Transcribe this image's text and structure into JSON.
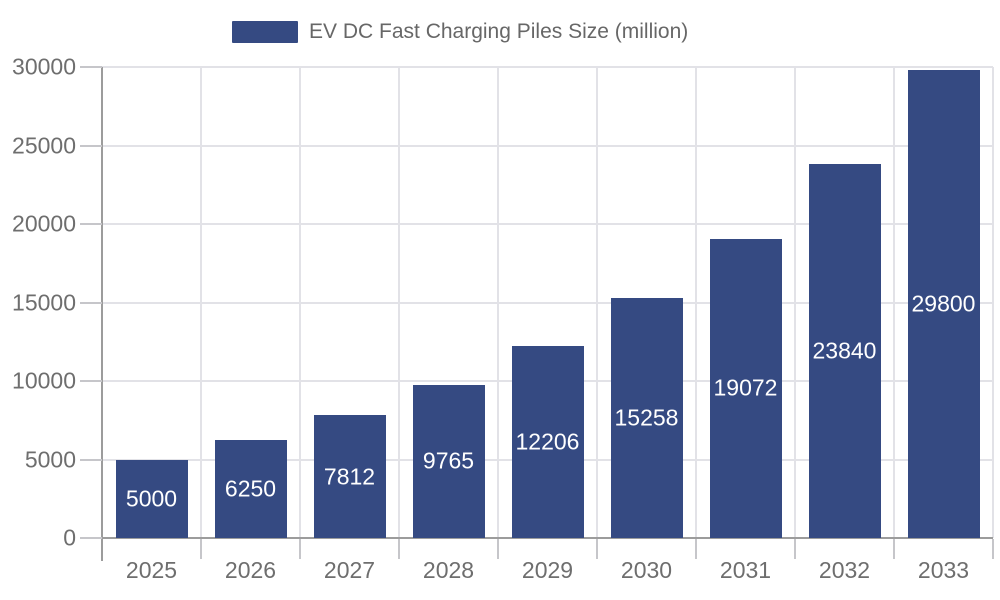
{
  "legend": {
    "label": "EV DC Fast Charging Piles Size (million)"
  },
  "chart_data": {
    "type": "bar",
    "title": "EV DC Fast Charging Piles Size (million)",
    "categories": [
      "2025",
      "2026",
      "2027",
      "2028",
      "2029",
      "2030",
      "2031",
      "2032",
      "2033"
    ],
    "series": [
      {
        "name": "EV DC Fast Charging Piles Size (million)",
        "values": [
          5000,
          6250,
          7812,
          9765,
          12206,
          15258,
          19072,
          23840,
          29800
        ]
      }
    ],
    "value_labels": [
      "5000",
      "6250",
      "7812",
      "9765",
      "12206",
      "15258",
      "19072",
      "23840",
      "29800"
    ],
    "xlabel": "",
    "ylabel": "",
    "ylim": [
      0,
      30000
    ],
    "yticks": [
      0,
      5000,
      10000,
      15000,
      20000,
      25000,
      30000
    ],
    "grid": true,
    "legend_position": "top-center",
    "colors": {
      "bar": "#354A82",
      "value_label": "#ffffff",
      "grid": "#e2e2e7",
      "axis_line": "#9c9c9c",
      "tick": "#c6c6ca",
      "axis_text": "#6e6e6e",
      "legend_text": "#676767",
      "background": "#ffffff"
    }
  }
}
